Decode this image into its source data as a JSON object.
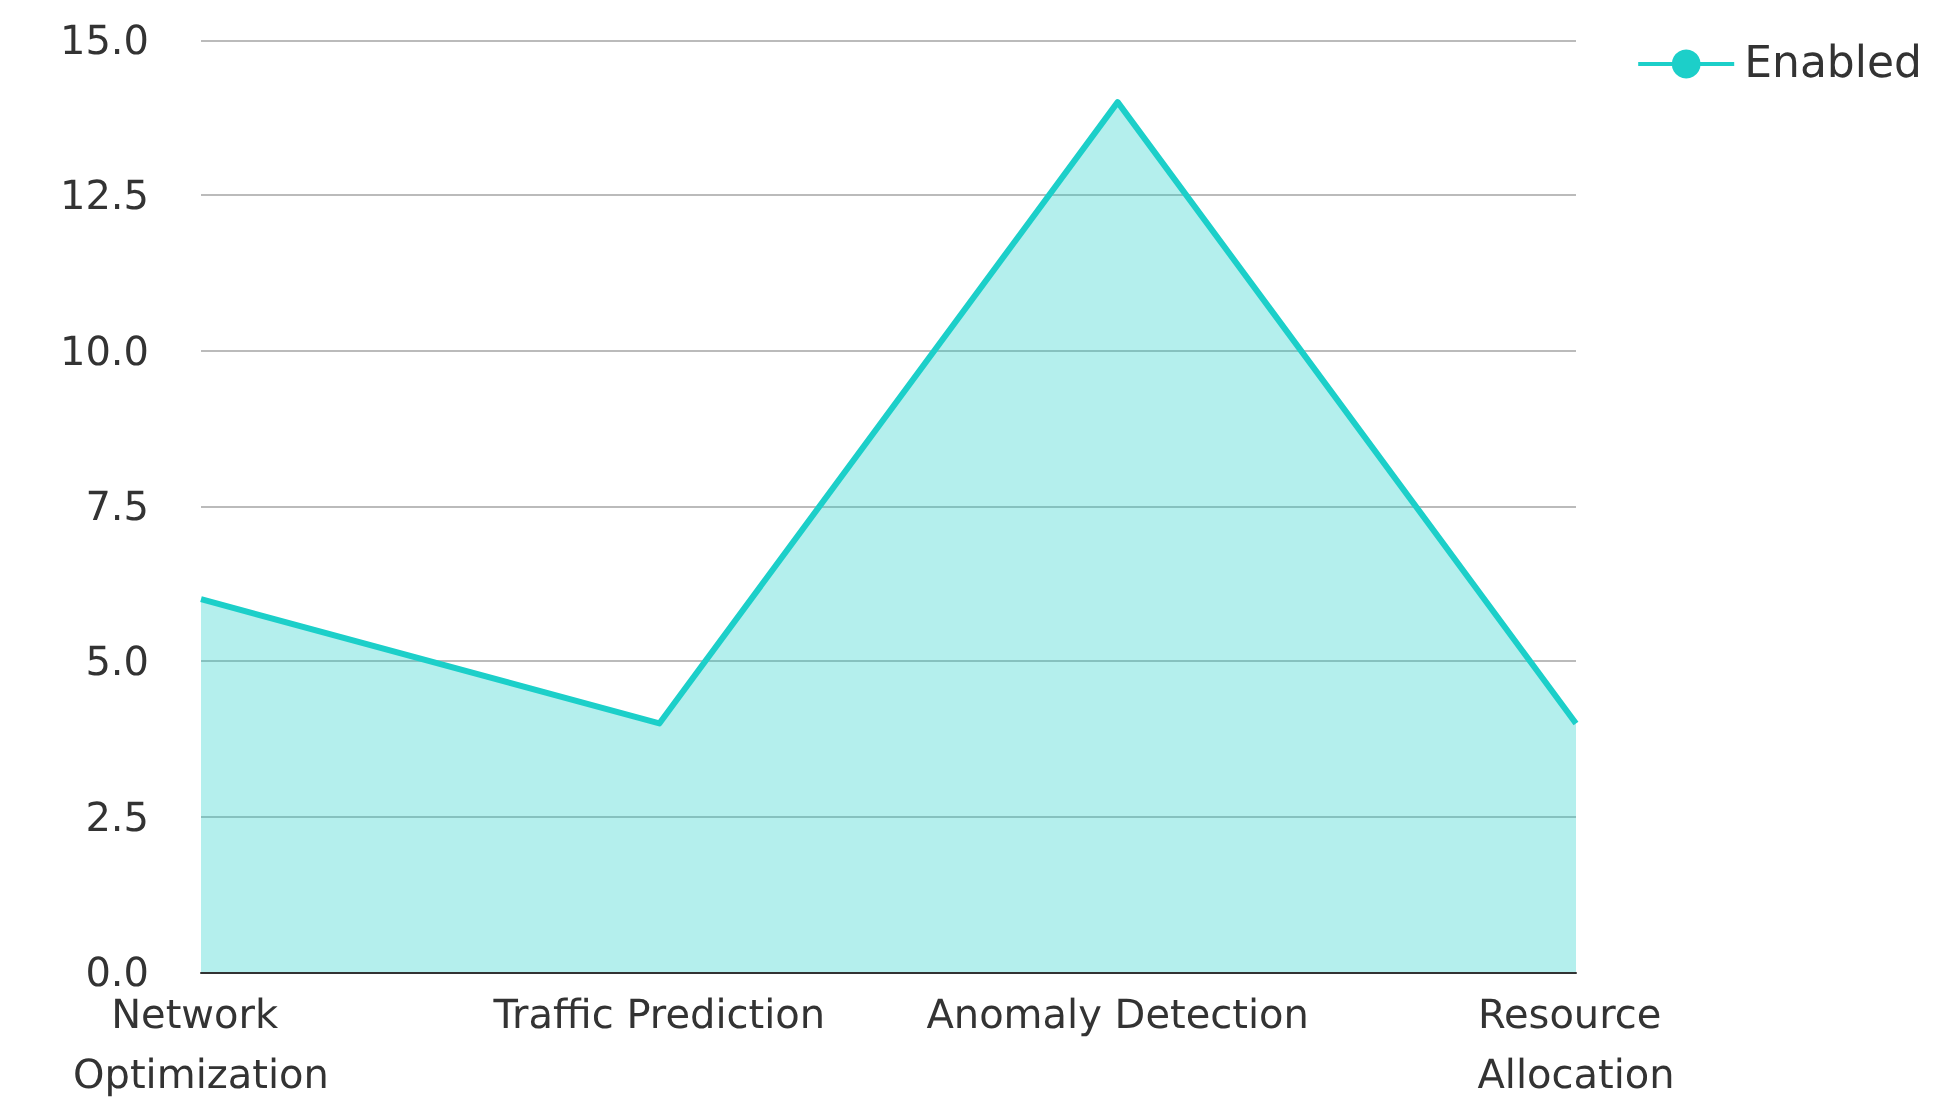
{
  "chart_data": {
    "type": "area",
    "categories": [
      "Network Optimization",
      "Traffic Prediction",
      "Anomaly Detection",
      "Resource Allocation"
    ],
    "series": [
      {
        "name": "Enabled",
        "color": "#1ccfc9",
        "values": [
          6,
          4,
          14,
          4
        ]
      }
    ],
    "ylim": [
      0,
      15
    ],
    "yticks": [
      {
        "value": 0,
        "label": "0.0"
      },
      {
        "value": 2.5,
        "label": "2.5"
      },
      {
        "value": 5,
        "label": "5.0"
      },
      {
        "value": 7.5,
        "label": "7.5"
      },
      {
        "value": 10,
        "label": "10.0"
      },
      {
        "value": 12.5,
        "label": "12.5"
      },
      {
        "value": 15,
        "label": "15.0"
      }
    ],
    "grid": "y",
    "legend": "top right",
    "marker": "none"
  }
}
